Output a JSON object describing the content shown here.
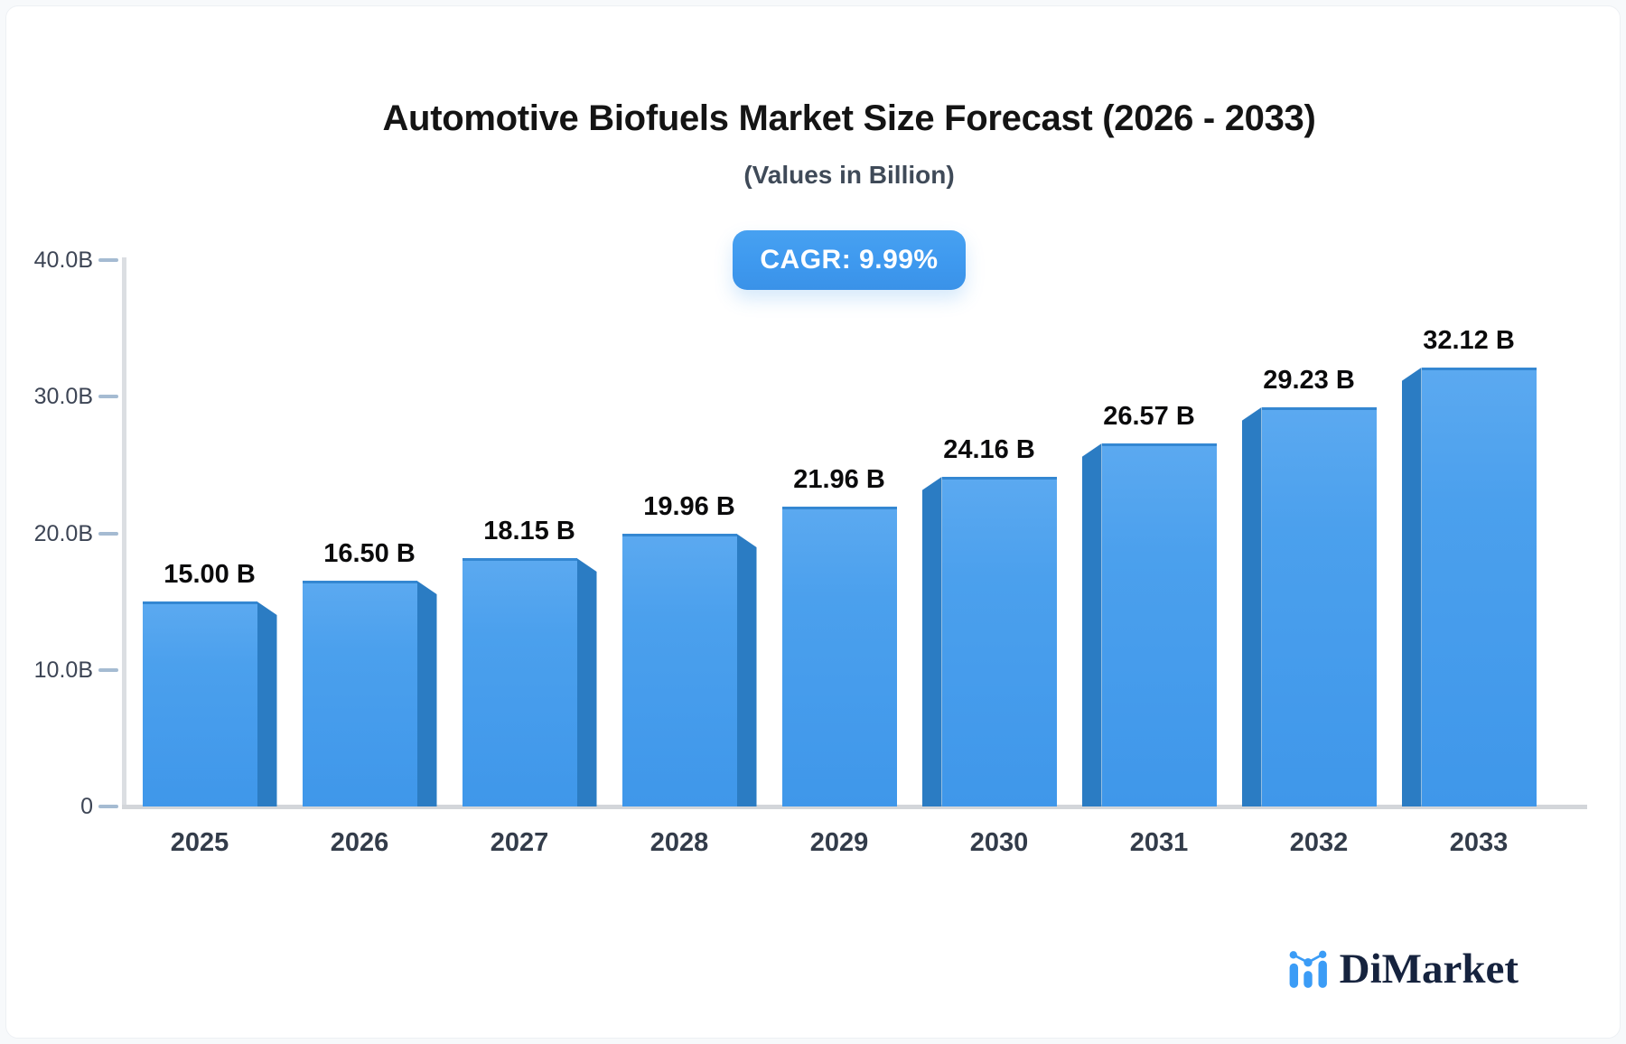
{
  "header": {
    "title": "Automotive Biofuels Market Size Forecast (2026 - 2033)",
    "subtitle": "(Values in Billion)",
    "cagr_badge": "CAGR: 9.99%"
  },
  "chart_data": {
    "type": "bar",
    "title": "Automotive Biofuels Market Size Forecast (2026 - 2033)",
    "subtitle": "(Values in Billion)",
    "cagr": "9.99%",
    "categories": [
      "2025",
      "2026",
      "2027",
      "2028",
      "2029",
      "2030",
      "2031",
      "2032",
      "2033"
    ],
    "values": [
      15.0,
      16.5,
      18.15,
      19.96,
      21.96,
      24.16,
      26.57,
      29.23,
      32.12
    ],
    "value_labels": [
      "15.00 B",
      "16.50 B",
      "18.15 B",
      "19.96 B",
      "21.96 B",
      "24.16 B",
      "26.57 B",
      "29.23 B",
      "32.12 B"
    ],
    "unit": "Billion",
    "ylim": [
      0,
      40
    ],
    "yticks": [
      {
        "value": 0,
        "label": "0"
      },
      {
        "value": 10,
        "label": "10.0B"
      },
      {
        "value": 20,
        "label": "20.0B"
      },
      {
        "value": 30,
        "label": "30.0B"
      },
      {
        "value": 40,
        "label": "40.0B"
      }
    ],
    "grid": false,
    "legend": false,
    "bar_style": "3d"
  },
  "footer": {
    "brand": "DiMarket"
  },
  "colors": {
    "bar_face_top": "#5BA9F0",
    "bar_face_bottom": "#3F97EA",
    "bar_side": "#2B7CC3",
    "bar_cap": "#3487D2",
    "badge_bg": "#3E99EF",
    "badge_text": "#FFFFFF",
    "axis_line": "#DBDEE2",
    "tick_dash": "#A5BBD2",
    "axis_label": "#3D4555",
    "x_label": "#333C4A",
    "value_label": "#0B0B0C",
    "logo_blue": "#3B9CF6",
    "logo_navy": "#16233E"
  }
}
